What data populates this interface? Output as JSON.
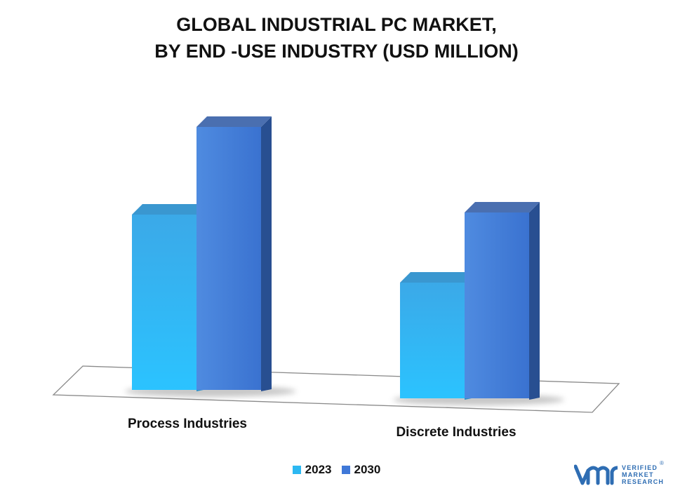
{
  "title_lines": [
    "GLOBAL INDUSTRIAL PC MARKET,",
    "BY END -USE INDUSTRY (USD MILLION)"
  ],
  "chart_data": {
    "type": "bar",
    "title": "GLOBAL INDUSTRIAL PC MARKET, BY END -USE INDUSTRY (USD MILLION)",
    "categories": [
      "Process Industries",
      "Discrete Industries"
    ],
    "series": [
      {
        "name": "2023",
        "values": [
          250,
          165
        ],
        "color": "#2cb8f2"
      },
      {
        "name": "2030",
        "values": [
          375,
          265
        ],
        "color": "#3f78d8"
      }
    ],
    "ylim": [
      0,
      400
    ],
    "grid": false,
    "legend_position": "bottom",
    "axis_values_shown": false
  },
  "legend": [
    {
      "label": "2023",
      "color": "#2cb8f2"
    },
    {
      "label": "2030",
      "color": "#3f78d8"
    }
  ],
  "logo": {
    "brand_lines": [
      "VERIFIED",
      "MARKET",
      "RESEARCH"
    ],
    "reg_mark": "®",
    "color": "#2e6db3"
  }
}
